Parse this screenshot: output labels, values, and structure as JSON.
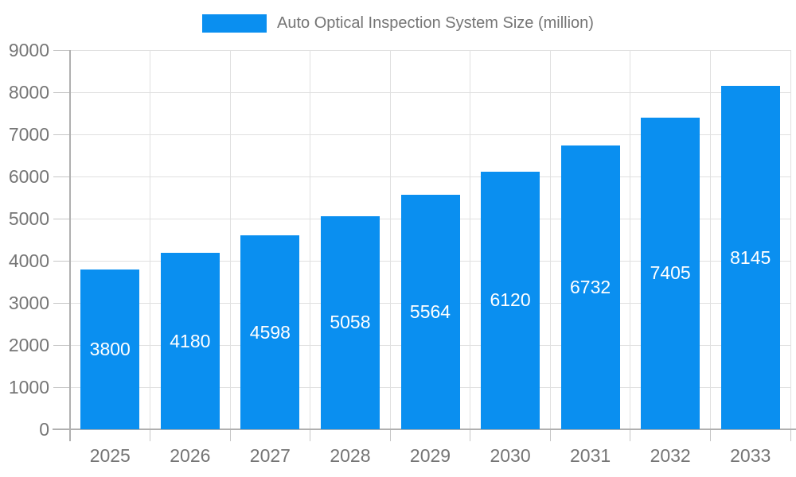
{
  "chart_data": {
    "type": "bar",
    "title": "Auto Optical Inspection System Size (million)",
    "categories": [
      "2025",
      "2026",
      "2027",
      "2028",
      "2029",
      "2030",
      "2031",
      "2032",
      "2033"
    ],
    "values": [
      3800,
      4180,
      4598,
      5058,
      5564,
      6120,
      6732,
      7405,
      8145
    ],
    "xlabel": "",
    "ylabel": "",
    "ylim": [
      0,
      9000
    ],
    "ytick_step": 1000,
    "yticks": [
      0,
      1000,
      2000,
      3000,
      4000,
      5000,
      6000,
      7000,
      8000,
      9000
    ],
    "legend_position": "top",
    "grid": true,
    "value_labels": "inside-center",
    "colors": {
      "bar": "#0a8ff0",
      "grid": "#e0e0e0",
      "axis": "#b0b0b0",
      "tick": "#c6c6c6",
      "label": "#757575",
      "value_label": "#ffffff",
      "background": "#ffffff"
    }
  }
}
